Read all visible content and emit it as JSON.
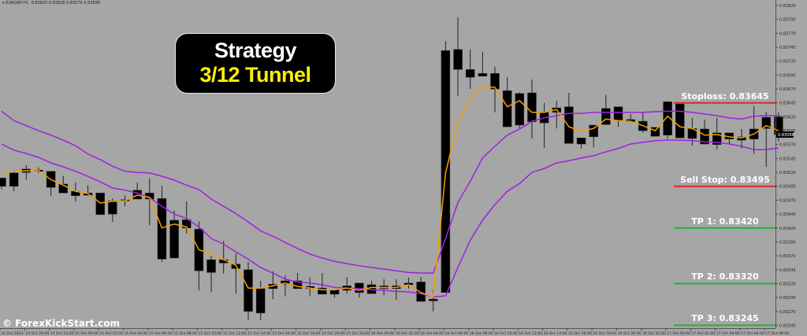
{
  "header": {
    "symbol": "EURGBP,H1",
    "ohlc_text": "0.83620 0.83628 0.83576 0.83588"
  },
  "title": {
    "line1": "Strategy",
    "line2": "3/12 Tunnel"
  },
  "watermark": "© ForexKickStart.com",
  "colors": {
    "background": "#a6a6a6",
    "candle": "#000000",
    "ema_fast": "#f5a000",
    "tunnel": "#a020e0",
    "stop": "#e0262a",
    "target": "#22b040"
  },
  "levels": [
    {
      "label": "Stoploss: 0.83645",
      "price": 0.83645,
      "type": "stop"
    },
    {
      "label": "Sell Stop: 0.83495",
      "price": 0.83495,
      "type": "stop"
    },
    {
      "label": "TP 1: 0.83420",
      "price": 0.8342,
      "type": "target"
    },
    {
      "label": "TP 2: 0.83320",
      "price": 0.8332,
      "type": "target"
    },
    {
      "label": "TP 3: 0.83245",
      "price": 0.83245,
      "type": "target"
    }
  ],
  "current_price": "0.83588",
  "price_axis": [
    "0.83820",
    "0.83795",
    "0.83770",
    "0.83745",
    "0.83720",
    "0.83695",
    "0.83670",
    "0.83645",
    "0.83620",
    "0.83595",
    "0.83570",
    "0.83545",
    "0.83520",
    "0.83495",
    "0.83470",
    "0.83445",
    "0.83420",
    "0.83395",
    "0.83370",
    "0.83345",
    "0.83320",
    "0.83295",
    "0.83270",
    "0.83245"
  ],
  "time_axis": [
    "14 Oct 2024",
    "14 Oct 20:00",
    "14 Oct 22:00",
    "15 Oct 00:00",
    "15 Oct 02:00",
    "15 Oct 04:00",
    "15 Oct 06:00",
    "15 Oct 08:00",
    "15 Oct 10:00",
    "15 Oct 12:00",
    "15 Oct 14:00",
    "15 Oct 16:00",
    "15 Oct 18:00",
    "15 Oct 20:00",
    "15 Oct 22:00",
    "16 Oct 00:00",
    "16 Oct 02:00",
    "16 Oct 04:00",
    "16 Oct 06:00",
    "16 Oct 08:00",
    "16 Oct 10:00",
    "16 Oct 12:00",
    "16 Oct 14:00",
    "16 Oct 16:00",
    "16 Oct 18:00",
    "16 Oct 20:00",
    "16 Oct 22:00",
    "17 Oct 00:00",
    "17 Oct 02:00",
    "17 Oct 04:00",
    "17 Oct 06:00",
    "17 Oct 08:00"
  ],
  "chart_data": {
    "type": "candlestick",
    "ylim": [
      0.83235,
      0.8383
    ],
    "ohlc": [
      [
        0.83495,
        0.8351,
        0.8349,
        0.8351
      ],
      [
        0.83495,
        0.83523,
        0.83486,
        0.83519
      ],
      [
        0.8352,
        0.83533,
        0.83507,
        0.83526
      ],
      [
        0.83524,
        0.83529,
        0.83519,
        0.83522
      ],
      [
        0.83522,
        0.83522,
        0.83478,
        0.83493
      ],
      [
        0.83499,
        0.83514,
        0.83483,
        0.83483
      ],
      [
        0.83486,
        0.83502,
        0.83468,
        0.83478
      ],
      [
        0.83483,
        0.83497,
        0.83479,
        0.83479
      ],
      [
        0.83483,
        0.83483,
        0.83444,
        0.83444
      ],
      [
        0.83445,
        0.83473,
        0.83431,
        0.83469
      ],
      [
        0.83469,
        0.83479,
        0.83459,
        0.83471
      ],
      [
        0.83472,
        0.83502,
        0.83472,
        0.83488
      ],
      [
        0.83483,
        0.83509,
        0.83425,
        0.83472
      ],
      [
        0.83473,
        0.83496,
        0.83359,
        0.83364
      ],
      [
        0.83366,
        0.83451,
        0.83366,
        0.83434
      ],
      [
        0.83435,
        0.83468,
        0.8341,
        0.8342
      ],
      [
        0.83418,
        0.83432,
        0.83308,
        0.83343
      ],
      [
        0.8334,
        0.8337,
        0.83305,
        0.83363
      ],
      [
        0.83363,
        0.83397,
        0.83338,
        0.83357
      ],
      [
        0.83355,
        0.83374,
        0.83302,
        0.83347
      ],
      [
        0.83345,
        0.83359,
        0.83254,
        0.8327
      ],
      [
        0.83267,
        0.83325,
        0.83254,
        0.83311
      ],
      [
        0.83311,
        0.83342,
        0.83292,
        0.83319
      ],
      [
        0.83319,
        0.83335,
        0.83297,
        0.83325
      ],
      [
        0.83325,
        0.83339,
        0.83311,
        0.83311
      ],
      [
        0.83315,
        0.83331,
        0.83297,
        0.83311
      ],
      [
        0.83312,
        0.83339,
        0.83301,
        0.83301
      ],
      [
        0.83301,
        0.83309,
        0.83295,
        0.83309
      ],
      [
        0.83308,
        0.83332,
        0.83302,
        0.83316
      ],
      [
        0.83321,
        0.83321,
        0.83295,
        0.83304
      ],
      [
        0.83302,
        0.83325,
        0.83302,
        0.83318
      ],
      [
        0.83311,
        0.83328,
        0.83299,
        0.83316
      ],
      [
        0.83316,
        0.83328,
        0.83291,
        0.83311
      ],
      [
        0.83318,
        0.83331,
        0.83311,
        0.83321
      ],
      [
        0.83323,
        0.83332,
        0.83288,
        0.83288
      ],
      [
        0.83289,
        0.83309,
        0.8327,
        0.83292
      ],
      [
        0.83304,
        0.83756,
        0.83304,
        0.83739
      ],
      [
        0.83741,
        0.83799,
        0.83657,
        0.83705
      ],
      [
        0.83705,
        0.83741,
        0.8367,
        0.83691
      ],
      [
        0.83698,
        0.83737,
        0.83693,
        0.83693
      ],
      [
        0.83698,
        0.8371,
        0.83628,
        0.8367
      ],
      [
        0.83667,
        0.83691,
        0.83602,
        0.83602
      ],
      [
        0.83605,
        0.83664,
        0.83599,
        0.83662
      ],
      [
        0.83663,
        0.83687,
        0.83581,
        0.83611
      ],
      [
        0.83609,
        0.83645,
        0.83564,
        0.83628
      ],
      [
        0.83628,
        0.83649,
        0.83599,
        0.83636
      ],
      [
        0.83638,
        0.83663,
        0.83572,
        0.83572
      ],
      [
        0.83571,
        0.83582,
        0.83563,
        0.83582
      ],
      [
        0.83584,
        0.83605,
        0.83565,
        0.83605
      ],
      [
        0.83606,
        0.83659,
        0.83606,
        0.83635
      ],
      [
        0.83638,
        0.83638,
        0.83602,
        0.83614
      ],
      [
        0.83615,
        0.83625,
        0.83611,
        0.83611
      ],
      [
        0.83612,
        0.83629,
        0.83591,
        0.83595
      ],
      [
        0.83601,
        0.83601,
        0.83585,
        0.83585
      ],
      [
        0.83587,
        0.83647,
        0.8358,
        0.83647
      ],
      [
        0.83643,
        0.83643,
        0.83582,
        0.83582
      ],
      [
        0.83599,
        0.83618,
        0.83568,
        0.83581
      ],
      [
        0.83598,
        0.83615,
        0.83571,
        0.83571
      ],
      [
        0.83591,
        0.83618,
        0.83561,
        0.8357
      ],
      [
        0.8358,
        0.83591,
        0.83571,
        0.83591
      ],
      [
        0.83584,
        0.83598,
        0.83563,
        0.83578
      ],
      [
        0.8358,
        0.83639,
        0.83553,
        0.83598
      ],
      [
        0.83599,
        0.83629,
        0.8353,
        0.83619
      ],
      [
        0.8362,
        0.83628,
        0.83576,
        0.83588
      ]
    ],
    "ema_fast": [
      0.83517,
      0.83522,
      0.83523,
      0.83523,
      0.83507,
      0.83497,
      0.83486,
      0.83482,
      0.83465,
      0.83468,
      0.83469,
      0.83479,
      0.83475,
      0.8342,
      0.83427,
      0.83422,
      0.83381,
      0.83373,
      0.83363,
      0.83353,
      0.83312,
      0.83312,
      0.83316,
      0.83321,
      0.83315,
      0.83312,
      0.83309,
      0.83309,
      0.83312,
      0.83308,
      0.83313,
      0.83313,
      0.83313,
      0.83318,
      0.83304,
      0.83296,
      0.83519,
      0.83611,
      0.83652,
      0.83674,
      0.83673,
      0.83638,
      0.83649,
      0.83628,
      0.83628,
      0.83633,
      0.83602,
      0.83594,
      0.83599,
      0.83616,
      0.83613,
      0.83612,
      0.83604,
      0.83595,
      0.83621,
      0.83602,
      0.83599,
      0.83587,
      0.83588,
      0.83584,
      0.83582,
      0.83589,
      0.83604,
      0.83595
    ],
    "tunnel_upper": [
      0.8363,
      0.83613,
      0.83604,
      0.83595,
      0.83587,
      0.83578,
      0.83568,
      0.83553,
      0.83543,
      0.83531,
      0.83522,
      0.8352,
      0.83519,
      0.83513,
      0.83506,
      0.83497,
      0.83489,
      0.83472,
      0.83459,
      0.83446,
      0.83431,
      0.83415,
      0.83405,
      0.83394,
      0.83383,
      0.83373,
      0.83366,
      0.8336,
      0.83356,
      0.83352,
      0.83349,
      0.83346,
      0.83343,
      0.8334,
      0.83339,
      0.83339,
      0.83401,
      0.83466,
      0.83504,
      0.83546,
      0.83567,
      0.83587,
      0.83598,
      0.83612,
      0.83618,
      0.83622,
      0.83626,
      0.83626,
      0.83628,
      0.83628,
      0.83628,
      0.83628,
      0.83628,
      0.83629,
      0.8363,
      0.8363,
      0.83628,
      0.83625,
      0.83622,
      0.83618,
      0.83616,
      0.83621,
      0.83622,
      0.83622
    ],
    "tunnel_lower": [
      0.83571,
      0.8356,
      0.83554,
      0.83547,
      0.83537,
      0.8353,
      0.83522,
      0.83513,
      0.83503,
      0.83492,
      0.83488,
      0.83483,
      0.83475,
      0.83459,
      0.83445,
      0.83437,
      0.83422,
      0.83401,
      0.83391,
      0.83377,
      0.83364,
      0.83349,
      0.83339,
      0.83328,
      0.83323,
      0.83321,
      0.83318,
      0.83313,
      0.83312,
      0.83311,
      0.83309,
      0.83308,
      0.83306,
      0.83305,
      0.83302,
      0.83296,
      0.83298,
      0.83349,
      0.83398,
      0.83434,
      0.83462,
      0.83486,
      0.835,
      0.8352,
      0.83527,
      0.83537,
      0.83541,
      0.83546,
      0.8355,
      0.83557,
      0.83563,
      0.83571,
      0.83574,
      0.83577,
      0.83578,
      0.83578,
      0.83577,
      0.83575,
      0.83574,
      0.83571,
      0.83567,
      0.83561,
      0.83561,
      0.83564
    ]
  }
}
